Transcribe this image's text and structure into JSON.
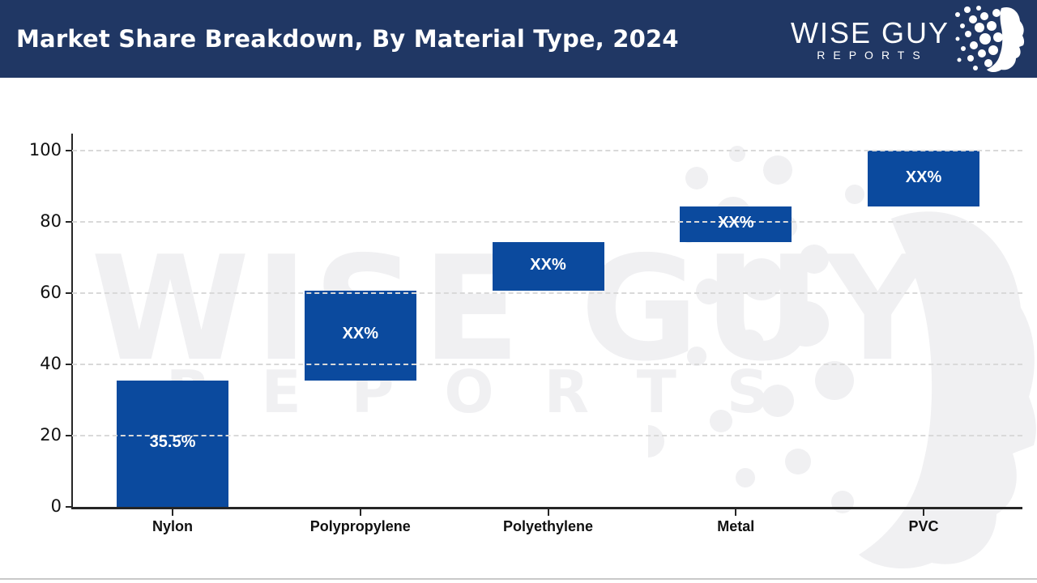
{
  "header": {
    "title": "Market Share Breakdown, By Material Type, 2024",
    "logo": {
      "line1": "WISE GUY",
      "line2": "REPORTS"
    }
  },
  "watermark": {
    "line1": "WISE GUY",
    "line2": "REPORTS"
  },
  "colors": {
    "header_bg": "#203764",
    "bar": "#0b4a9e",
    "bar_label": "#ffffff",
    "gridline": "#d9d9d9",
    "axis": "#262626",
    "watermark": "#f0f0f2"
  },
  "chart_data": {
    "type": "bar",
    "subtype": "waterfall",
    "title": "Market Share Breakdown, By Material Type, 2024",
    "categories": [
      "Nylon",
      "Polypropylene",
      "Polyethylene",
      "Metal",
      "PVC"
    ],
    "series": [
      {
        "name": "Market share (cumulative %)",
        "segments": [
          {
            "category": "Nylon",
            "start": 0,
            "end": 35.5,
            "label": "35.5%"
          },
          {
            "category": "Polypropylene",
            "start": 35.5,
            "end": 60.7,
            "label": "XX%"
          },
          {
            "category": "Polyethylene",
            "start": 60.7,
            "end": 74.3,
            "label": "XX%"
          },
          {
            "category": "Metal",
            "start": 74.3,
            "end": 84.3,
            "label": "XX%"
          },
          {
            "category": "PVC",
            "start": 84.3,
            "end": 100,
            "label": "XX%"
          }
        ]
      }
    ],
    "xlabel": "",
    "ylabel": "",
    "ylim": [
      0,
      100
    ],
    "yticks": [
      0,
      20,
      40,
      60,
      80,
      100
    ],
    "grid": "horizontal-dashed",
    "legend": "none"
  }
}
